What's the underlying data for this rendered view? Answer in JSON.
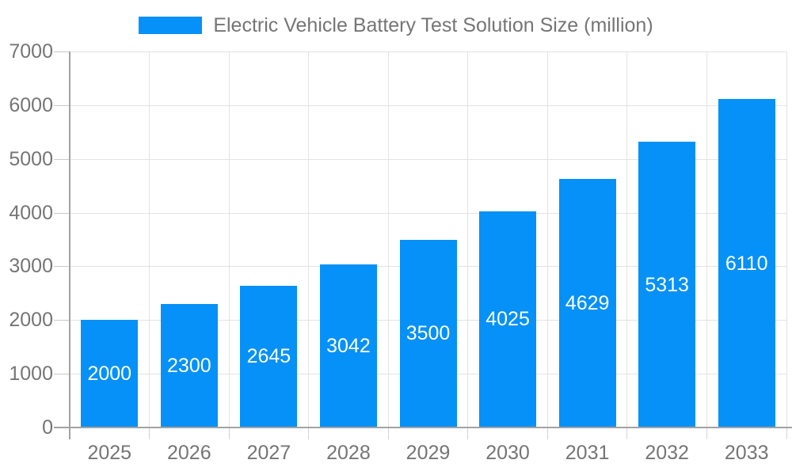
{
  "chart_data": {
    "type": "bar",
    "title": "Electric Vehicle Battery Test Solution Size (million)",
    "categories": [
      "2025",
      "2026",
      "2027",
      "2028",
      "2029",
      "2030",
      "2031",
      "2032",
      "2033"
    ],
    "series": [
      {
        "name": "Electric Vehicle Battery Test Solution Size (million)",
        "values": [
          2000,
          2300,
          2645,
          3042,
          3500,
          4025,
          4629,
          5313,
          6110
        ]
      }
    ],
    "bar_value_labels": [
      "2000",
      "2300",
      "2645",
      "3042",
      "3500",
      "4025",
      "4629",
      "5313",
      "6110"
    ],
    "xlabel": "",
    "ylabel": "",
    "ylim": [
      0,
      7000
    ],
    "yticks": [
      0,
      1000,
      2000,
      3000,
      4000,
      5000,
      6000,
      7000
    ],
    "grid": true,
    "legend_position": "top-center",
    "value_label_position": "inside-middle"
  },
  "colors": {
    "bar": "#0591f7",
    "bar_label": "#ffffff",
    "text": "#757575",
    "grid": "#e3e3e3",
    "axis": "#a3a3a3",
    "background": "#ffffff"
  }
}
